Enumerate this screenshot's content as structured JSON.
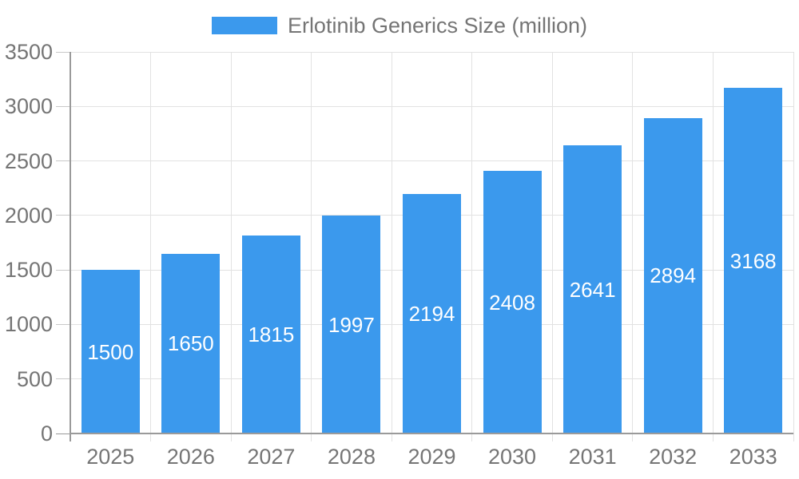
{
  "chart_data": {
    "type": "bar",
    "title": "Erlotinib Generics Size (million)",
    "categories": [
      "2025",
      "2026",
      "2027",
      "2028",
      "2029",
      "2030",
      "2031",
      "2032",
      "2033"
    ],
    "series": [
      {
        "name": "Erlotinib Generics Size (million)",
        "values": [
          1500,
          1650,
          1815,
          1997,
          2194,
          2408,
          2641,
          2894,
          3168
        ]
      }
    ],
    "xlabel": "",
    "ylabel": "",
    "ylim": [
      0,
      3500
    ],
    "y_ticks": [
      0,
      500,
      1000,
      1500,
      2000,
      2500,
      3000,
      3500
    ],
    "grid": true,
    "legend_position": "top",
    "bar_value_labels_visible": true
  },
  "legend": {
    "label": "Erlotinib Generics Size (million)"
  },
  "colors": {
    "bar": "#3B99ED",
    "bar_value_label": "#FFFFFF",
    "axis_text": "#757575",
    "legend_text": "#757575",
    "gridline": "#E2E2E2",
    "axis_line": "#9A9A9A",
    "background": "#FFFFFF"
  }
}
